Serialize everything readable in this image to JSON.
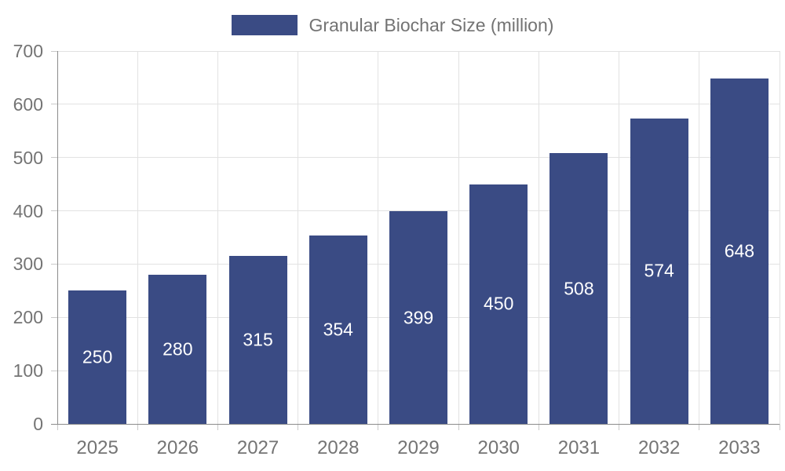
{
  "legend": {
    "label": "Granular Biochar Size (million)"
  },
  "chart_data": {
    "type": "bar",
    "title": "Granular Biochar Size (million)",
    "series_name": "Granular Biochar Size (million)",
    "categories": [
      "2025",
      "2026",
      "2027",
      "2028",
      "2029",
      "2030",
      "2031",
      "2032",
      "2033"
    ],
    "values": [
      250,
      280,
      315,
      354,
      399,
      450,
      508,
      574,
      648
    ],
    "xlabel": "",
    "ylabel": "",
    "ylim": [
      0,
      700
    ],
    "yticks": [
      0,
      100,
      200,
      300,
      400,
      500,
      600,
      700
    ],
    "grid": true,
    "legend_position": "top",
    "value_labels": "inside-middle"
  },
  "colors": {
    "bar": "#3a4b84",
    "grid": "#e2e2e2",
    "axis": "#8c8c8c",
    "tick_mark": "#c9c9c9",
    "tick_text": "#747474",
    "value_label": "#ffffff",
    "background": "#ffffff"
  }
}
